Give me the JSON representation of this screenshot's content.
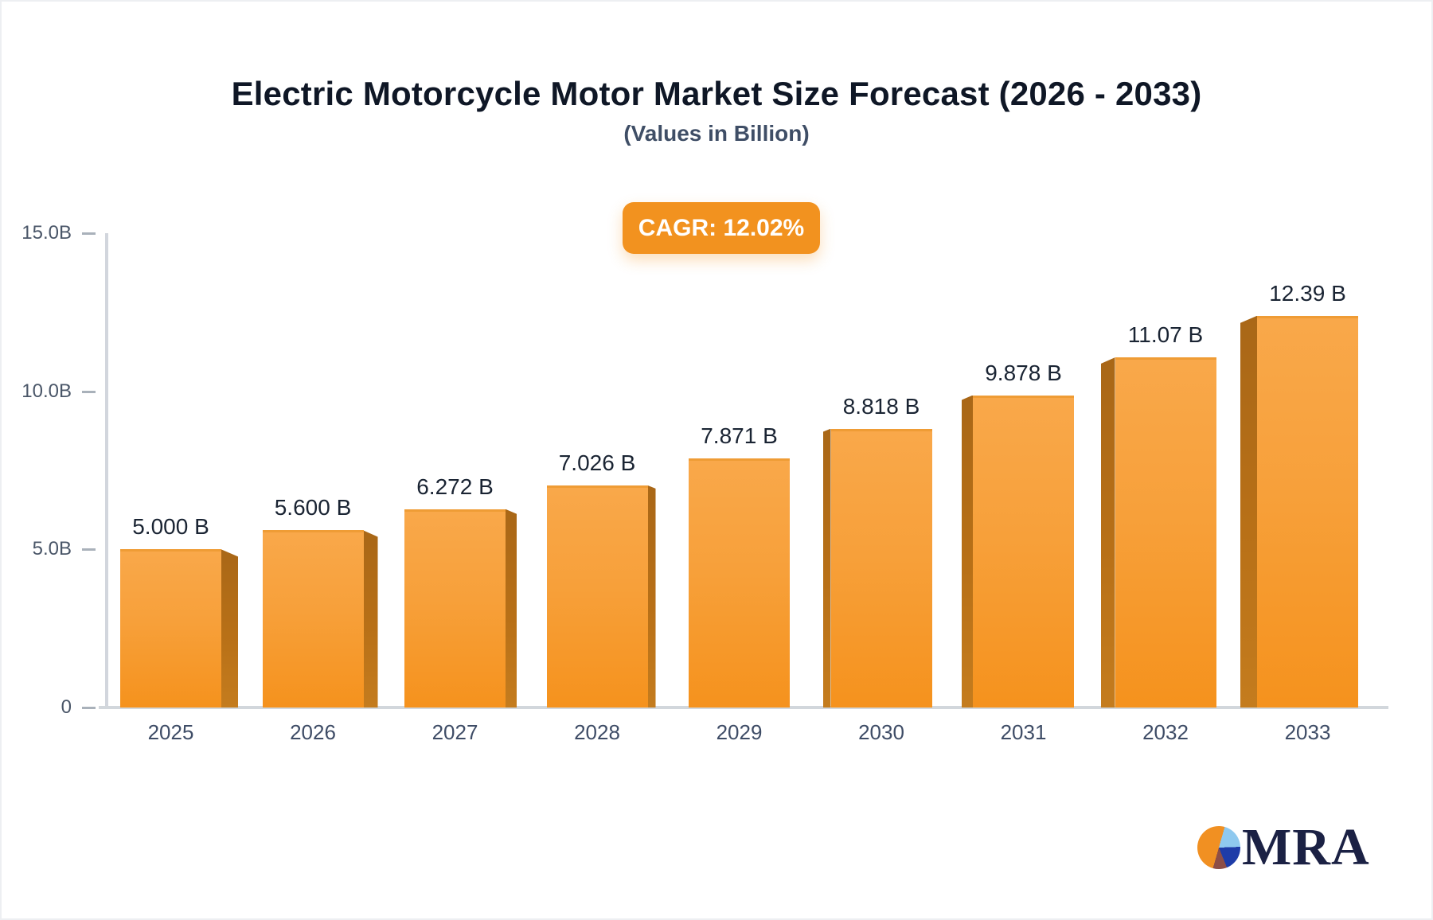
{
  "header": {
    "title": "Electric Motorcycle Motor Market Size Forecast (2026 - 2033)",
    "subtitle": "(Values in Billion)",
    "cagr_badge": "CAGR: 12.02%"
  },
  "chart_data": {
    "type": "bar",
    "title": "Electric Motorcycle Motor Market Size Forecast (2026 - 2033)",
    "subtitle": "(Values in Billion)",
    "annotation": "CAGR: 12.02%",
    "categories": [
      "2025",
      "2026",
      "2027",
      "2028",
      "2029",
      "2030",
      "2031",
      "2032",
      "2033"
    ],
    "values": [
      5.0,
      5.6,
      6.272,
      7.026,
      7.871,
      8.818,
      9.878,
      11.07,
      12.39
    ],
    "value_labels": [
      "5.000 B",
      "5.600 B",
      "6.272 B",
      "7.026 B",
      "7.871 B",
      "8.818 B",
      "9.878 B",
      "11.07 B",
      "12.39 B"
    ],
    "unit": "Billion",
    "ylim": [
      0,
      15
    ],
    "yticks": [
      {
        "value": 0,
        "label": "0"
      },
      {
        "value": 5,
        "label": "5.0B"
      },
      {
        "value": 10,
        "label": "10.0B"
      },
      {
        "value": 15,
        "label": "15.0B"
      }
    ],
    "grid": false,
    "legend": false,
    "bar_style": "3d-perspective",
    "colors": {
      "bar_top": "#F9A84A",
      "bar_bottom": "#F5921D",
      "bar_side": "#B06A17",
      "badge": "#F2921F",
      "title_text": "#0F1726",
      "subtitle_text": "#3F4E66",
      "axis_text": "#4A5668",
      "value_text": "#1A2433",
      "axis_line": "#D2D6DD"
    }
  },
  "logo": {
    "text": "MRA"
  }
}
